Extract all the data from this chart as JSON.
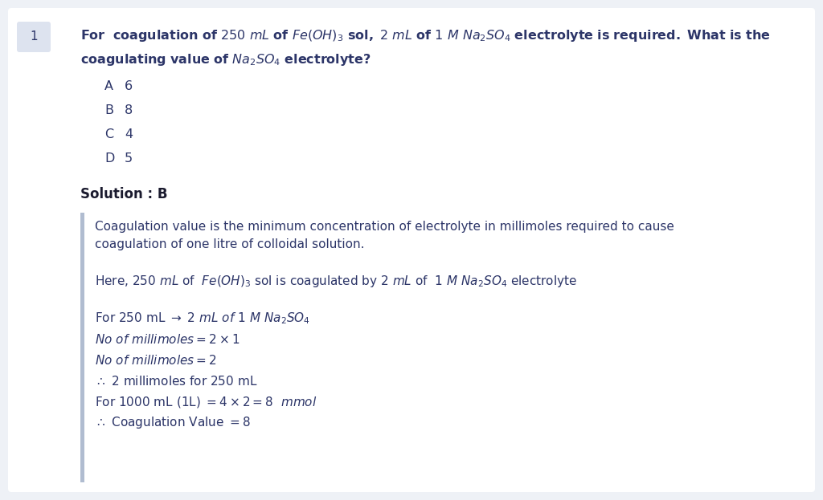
{
  "bg_color": "#eef1f6",
  "card_color": "#ffffff",
  "question_number": "1",
  "options": [
    {
      "label": "A",
      "value": "6"
    },
    {
      "label": "B",
      "value": "8"
    },
    {
      "label": "C",
      "value": "4"
    },
    {
      "label": "D",
      "value": "5"
    }
  ],
  "solution_label": "Solution : B",
  "explanation_line1": "Coagulation value is the minimum concentration of electrolyte in millimoles required to cause",
  "explanation_line2": "coagulation of one litre of colloidal solution.",
  "text_color": "#2c3568",
  "dark_color": "#1a1a2e",
  "bar_color": "#b0bcd0",
  "number_box_color": "#dde3ef",
  "font_size_q": 11.5,
  "font_size_opts": 11.5,
  "font_size_sol": 12,
  "font_size_expl": 11,
  "font_size_calc": 11
}
